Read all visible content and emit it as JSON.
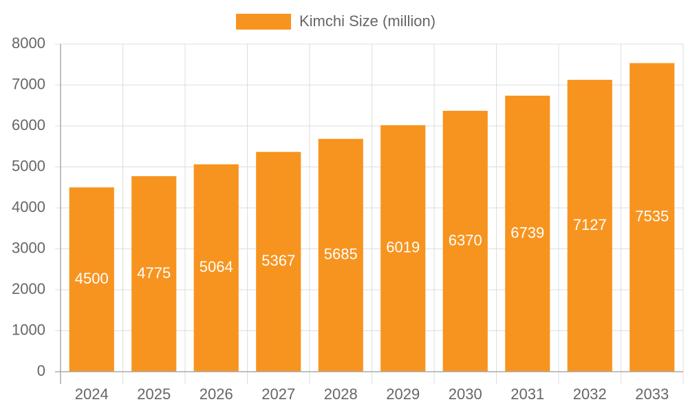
{
  "chart_data": {
    "type": "bar",
    "legend": "Kimchi Size (million)",
    "categories": [
      "2024",
      "2025",
      "2026",
      "2027",
      "2028",
      "2029",
      "2030",
      "2031",
      "2032",
      "2033"
    ],
    "values": [
      4500,
      4775,
      5064,
      5367,
      5685,
      6019,
      6370,
      6739,
      7127,
      7535
    ],
    "color": "#f7941f",
    "ylim": [
      0,
      8000
    ],
    "yticks": [
      0,
      1000,
      2000,
      3000,
      4000,
      5000,
      6000,
      7000,
      8000
    ],
    "grid": true,
    "legend_position": "top"
  }
}
